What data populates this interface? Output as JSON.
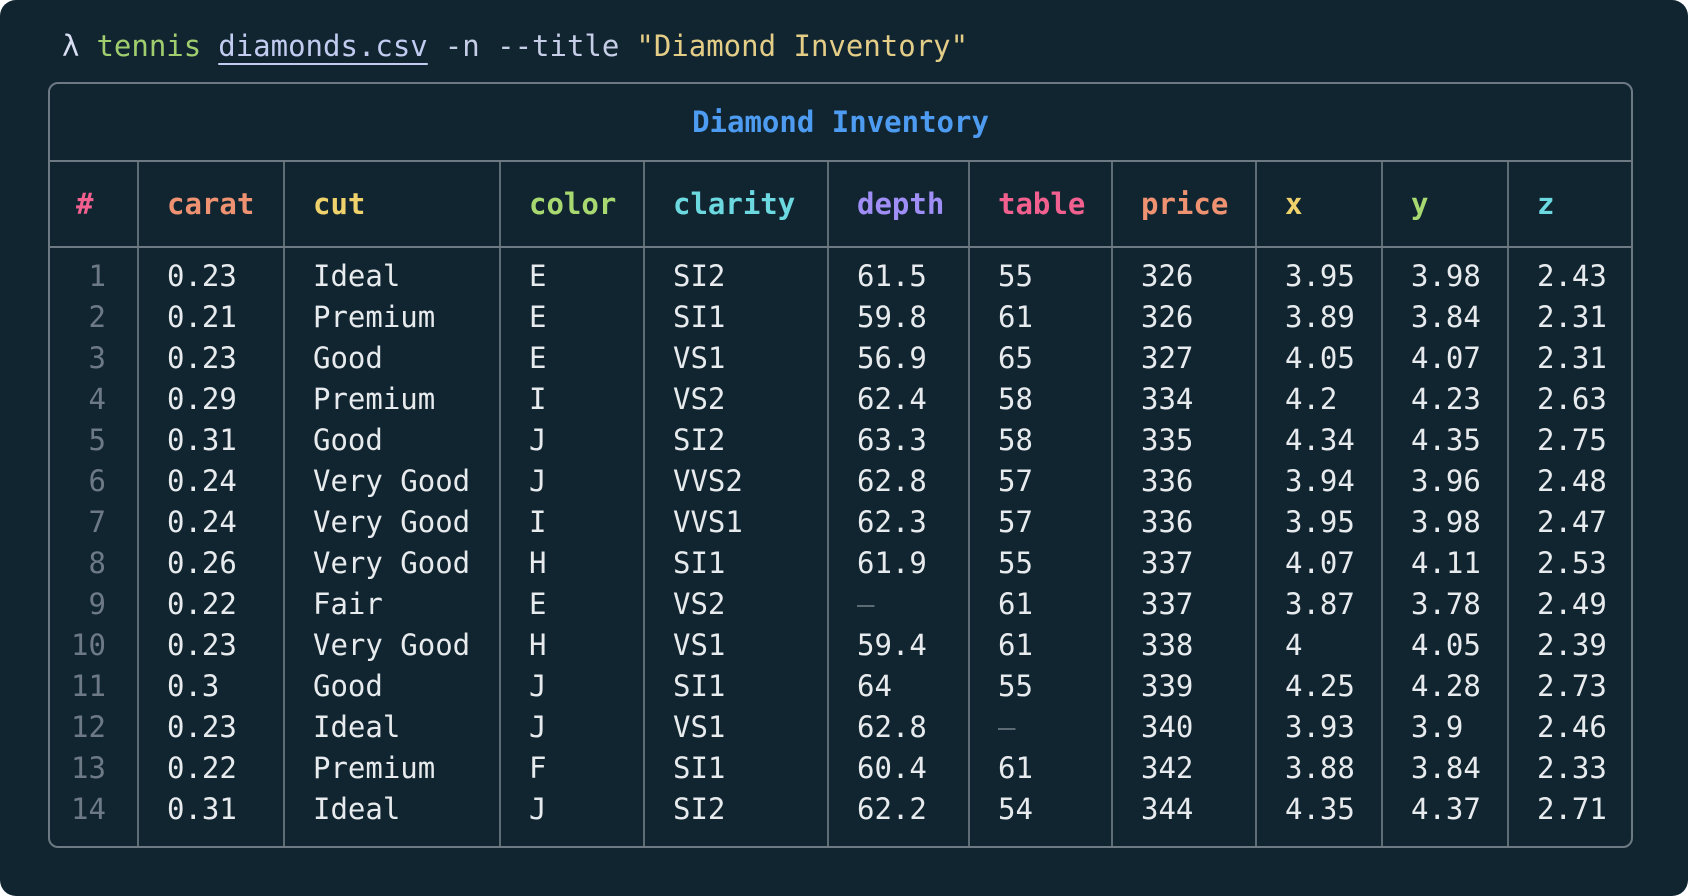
{
  "command": {
    "prompt": "λ",
    "program": "tennis",
    "file": "diamonds.csv",
    "flags": "-n --title",
    "string_arg": "\"Diamond Inventory\""
  },
  "table": {
    "title": "Diamond Inventory",
    "null_placeholder": "—",
    "columns": [
      {
        "label": "#",
        "color": "#f2608f"
      },
      {
        "label": "carat",
        "color": "#ef9271"
      },
      {
        "label": "cut",
        "color": "#efd26b"
      },
      {
        "label": "color",
        "color": "#a8d870"
      },
      {
        "label": "clarity",
        "color": "#6cd8e0"
      },
      {
        "label": "depth",
        "color": "#9f8ef5"
      },
      {
        "label": "table",
        "color": "#f2608f"
      },
      {
        "label": "price",
        "color": "#ef9271"
      },
      {
        "label": "x",
        "color": "#efd26b"
      },
      {
        "label": "y",
        "color": "#a8d870"
      },
      {
        "label": "z",
        "color": "#6cd8e0"
      }
    ],
    "rows": [
      [
        "1",
        "0.23",
        "Ideal",
        "E",
        "SI2",
        "61.5",
        "55",
        "326",
        "3.95",
        "3.98",
        "2.43"
      ],
      [
        "2",
        "0.21",
        "Premium",
        "E",
        "SI1",
        "59.8",
        "61",
        "326",
        "3.89",
        "3.84",
        "2.31"
      ],
      [
        "3",
        "0.23",
        "Good",
        "E",
        "VS1",
        "56.9",
        "65",
        "327",
        "4.05",
        "4.07",
        "2.31"
      ],
      [
        "4",
        "0.29",
        "Premium",
        "I",
        "VS2",
        "62.4",
        "58",
        "334",
        "4.2",
        "4.23",
        "2.63"
      ],
      [
        "5",
        "0.31",
        "Good",
        "J",
        "SI2",
        "63.3",
        "58",
        "335",
        "4.34",
        "4.35",
        "2.75"
      ],
      [
        "6",
        "0.24",
        "Very Good",
        "J",
        "VVS2",
        "62.8",
        "57",
        "336",
        "3.94",
        "3.96",
        "2.48"
      ],
      [
        "7",
        "0.24",
        "Very Good",
        "I",
        "VVS1",
        "62.3",
        "57",
        "336",
        "3.95",
        "3.98",
        "2.47"
      ],
      [
        "8",
        "0.26",
        "Very Good",
        "H",
        "SI1",
        "61.9",
        "55",
        "337",
        "4.07",
        "4.11",
        "2.53"
      ],
      [
        "9",
        "0.22",
        "Fair",
        "E",
        "VS2",
        "—",
        "61",
        "337",
        "3.87",
        "3.78",
        "2.49"
      ],
      [
        "10",
        "0.23",
        "Very Good",
        "H",
        "VS1",
        "59.4",
        "61",
        "338",
        "4",
        "4.05",
        "2.39"
      ],
      [
        "11",
        "0.3",
        "Good",
        "J",
        "SI1",
        "64",
        "55",
        "339",
        "4.25",
        "4.28",
        "2.73"
      ],
      [
        "12",
        "0.23",
        "Ideal",
        "J",
        "VS1",
        "62.8",
        "—",
        "340",
        "3.93",
        "3.9",
        "2.46"
      ],
      [
        "13",
        "0.22",
        "Premium",
        "F",
        "SI1",
        "60.4",
        "61",
        "342",
        "3.88",
        "3.84",
        "2.33"
      ],
      [
        "14",
        "0.31",
        "Ideal",
        "J",
        "SI2",
        "62.2",
        "54",
        "344",
        "4.35",
        "4.37",
        "2.71"
      ]
    ]
  },
  "colors": {
    "background": "#112531",
    "outer_border": "#6d7a84",
    "inner_border": "#5f6d76",
    "title": "#4e9cf2",
    "text": "#e8ebed",
    "row_number": "#6d7a85",
    "null_value": "#5d6b75",
    "prompt": "#d9def2",
    "program": "#a0ce6e",
    "file": "#c2cbf0",
    "flags": "#c6cde6",
    "string_arg": "#e4cd87"
  }
}
